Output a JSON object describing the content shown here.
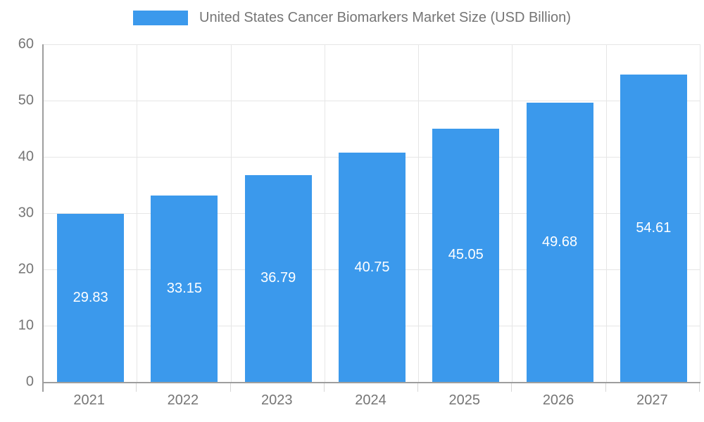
{
  "chart_data": {
    "type": "bar",
    "title": "United States Cancer Biomarkers Market Size (USD Billion)",
    "categories": [
      "2021",
      "2022",
      "2023",
      "2024",
      "2025",
      "2026",
      "2027"
    ],
    "series": [
      {
        "name": "United States Cancer Biomarkers Market Size (USD Billion)",
        "values": [
          29.83,
          33.15,
          36.79,
          40.75,
          45.05,
          49.68,
          54.61
        ]
      }
    ],
    "value_labels": [
      "29.83",
      "33.15",
      "36.79",
      "40.75",
      "45.05",
      "49.68",
      "54.61"
    ],
    "xlabel": "",
    "ylabel": "",
    "ylim": [
      0,
      60
    ],
    "yticks": [
      0,
      10,
      20,
      30,
      40,
      50,
      60
    ],
    "grid": true,
    "legend_position": "top"
  },
  "legend": {
    "label": "United States Cancer Biomarkers Market Size (USD Billion)",
    "swatch_color": "#3B99EC"
  },
  "colors": {
    "bar": "#3B99EC",
    "axis": "#9e9e9e",
    "gridline": "#e6e6e6",
    "tick_text": "#757575",
    "value_text": "#ffffff",
    "background": "#ffffff"
  }
}
